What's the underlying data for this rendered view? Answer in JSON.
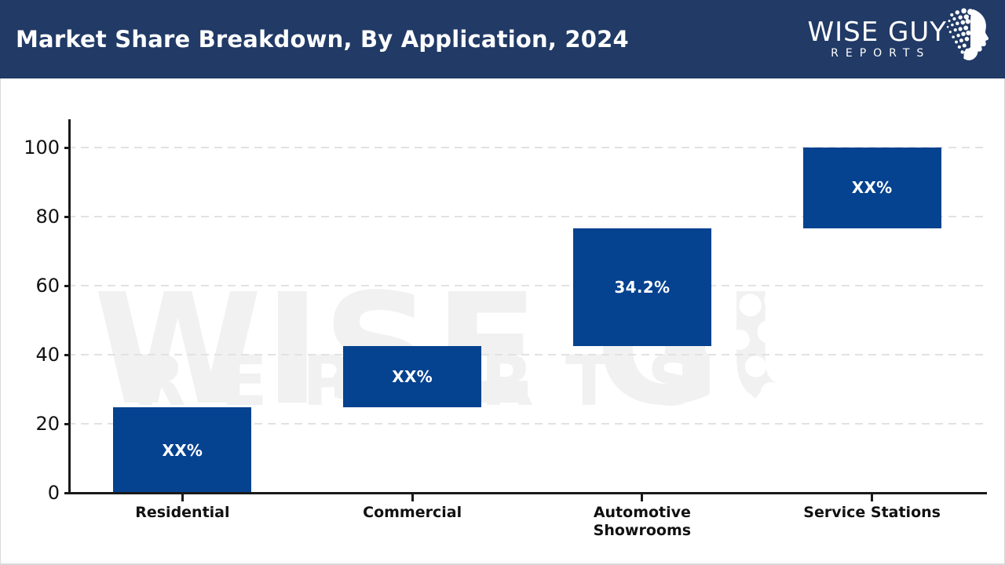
{
  "header": {
    "title": "Market Share Breakdown, By Application, 2024",
    "logo": {
      "name": "WISE GUY",
      "subtitle": "REPORTS"
    }
  },
  "watermark": {
    "word": "WISE GU",
    "subtitle": "REPORTS"
  },
  "colors": {
    "header_bg": "#213a66",
    "bar_fill": "#05428f",
    "bar_label": "#ffffff",
    "axis": "#1a1a1a",
    "grid": "#e2e2e2",
    "watermark": "#f1f1f1",
    "border": "#d9d9d9",
    "title_text": "#ffffff"
  },
  "chart_data": {
    "type": "bar",
    "subtype": "floating-waterfall",
    "title": "Market Share Breakdown, By Application, 2024",
    "xlabel": "",
    "ylabel": "",
    "ylim": [
      0,
      100
    ],
    "yticks": [
      0,
      20,
      40,
      60,
      80,
      100
    ],
    "grid": "horizontal-dashed",
    "legend": false,
    "categories": [
      "Residential",
      "Commercial",
      "Automotive\nShowrooms",
      "Service Stations"
    ],
    "bars": [
      {
        "category": "Residential",
        "label": "XX%",
        "start": 0,
        "end": 24.7
      },
      {
        "category": "Commercial",
        "label": "XX%",
        "start": 24.7,
        "end": 42.4
      },
      {
        "category": "Automotive\nShowrooms",
        "label": "34.2%",
        "start": 42.4,
        "end": 76.6
      },
      {
        "category": "Service Stations",
        "label": "XX%",
        "start": 76.6,
        "end": 100
      }
    ]
  }
}
